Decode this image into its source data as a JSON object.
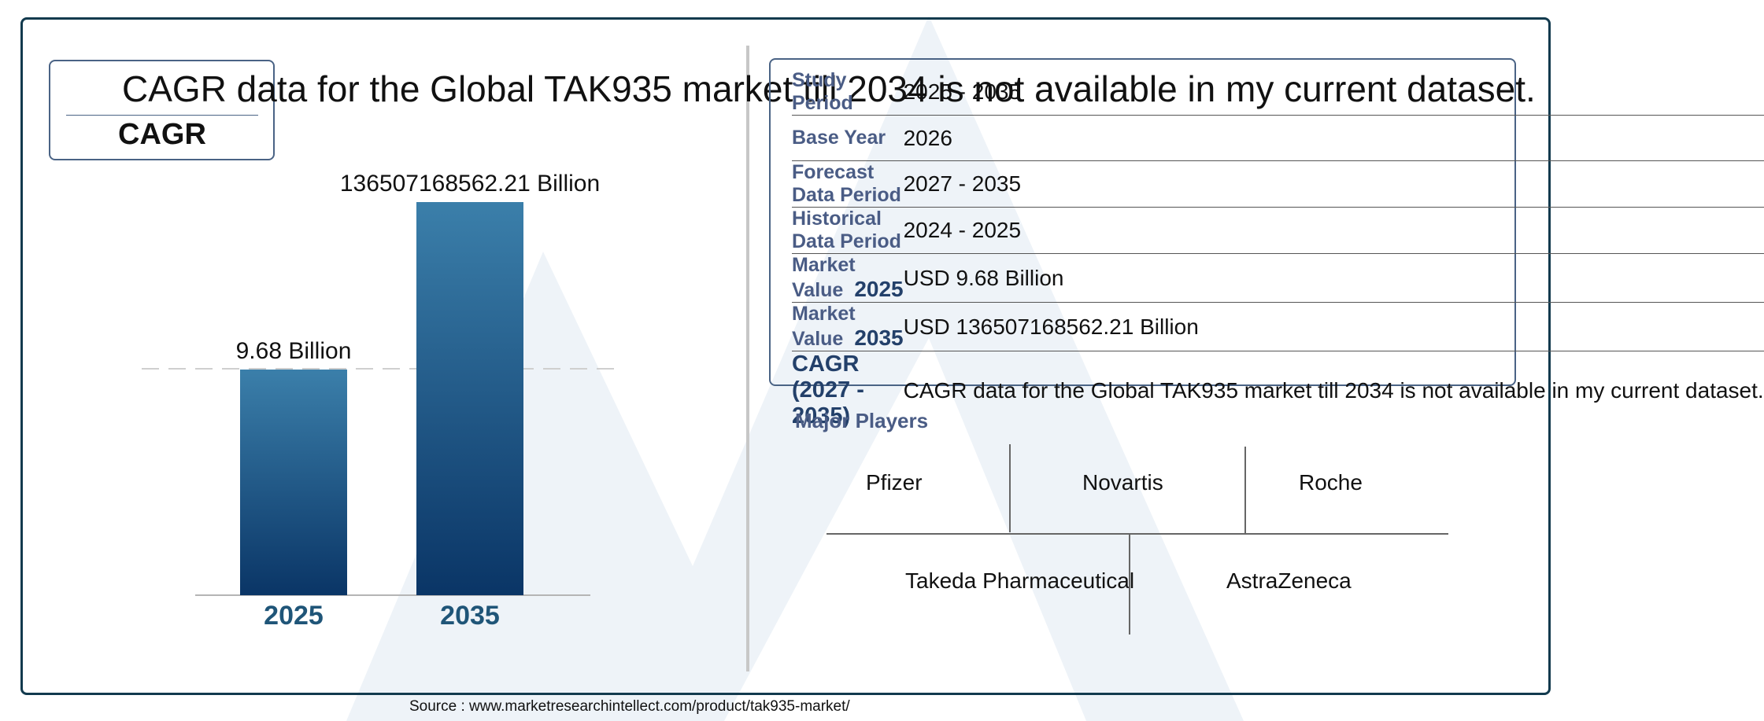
{
  "headline": "CAGR data for the Global TAK935 market till 2034 is not available in my current dataset.",
  "cagr_label": "CAGR",
  "chart_data": {
    "type": "bar",
    "categories": [
      "2025",
      "2035"
    ],
    "values": [
      9.68,
      136507168562.21
    ],
    "data_labels": [
      "9.68 Billion",
      "136507168562.21 Billion"
    ],
    "colors": {
      "bar_top": "#3b7faa",
      "bar_bottom": "#0a3566",
      "tick_label": "#1f5578"
    }
  },
  "info_table": [
    {
      "key": "Study Period",
      "value": "2025 - 2035"
    },
    {
      "key": "Base Year",
      "value": "2026"
    },
    {
      "key": "Forecast Data Period",
      "value": "2027 - 2035"
    },
    {
      "key": "Historical Data Period",
      "value": "2024 - 2025"
    },
    {
      "key": "Market Value",
      "year": "2025",
      "value": "USD 9.68 Billion"
    },
    {
      "key": "Market Value",
      "year": "2035",
      "value": "USD 136507168562.21 Billion"
    },
    {
      "key": "CAGR (2027 - 2035)",
      "value": "CAGR data for the Global TAK935 market till 2034 is not available in my current dataset."
    }
  ],
  "major_players": {
    "title": "Major Players",
    "players": [
      "Pfizer",
      "Novartis",
      "Roche",
      "Takeda Pharmaceutical",
      "AstraZeneca"
    ]
  },
  "source": "Source : www.marketresearchintellect.com/product/tak935-market/"
}
